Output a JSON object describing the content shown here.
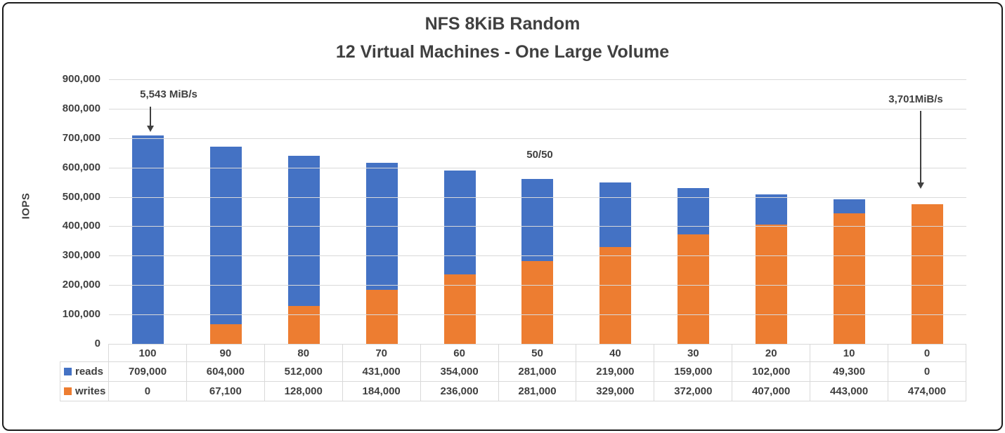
{
  "title": {
    "line1": "NFS 8KiB Random",
    "line2": "12 Virtual Machines - One Large Volume"
  },
  "chart_data": {
    "type": "bar",
    "stacked": true,
    "title": "NFS 8KiB Random 12 Virtual Machines - One Large Volume",
    "xlabel": "",
    "ylabel": "IOPS",
    "ylim": [
      0,
      900000
    ],
    "ytick_step": 100000,
    "grid": true,
    "legend_position": "table-left",
    "categories": [
      "100",
      "90",
      "80",
      "70",
      "60",
      "50",
      "40",
      "30",
      "20",
      "10",
      "0"
    ],
    "series": [
      {
        "name": "reads",
        "color": "#4472C4",
        "values": [
          709000,
          604000,
          512000,
          431000,
          354000,
          281000,
          219000,
          159000,
          102000,
          49300,
          0
        ]
      },
      {
        "name": "writes",
        "color": "#ED7D31",
        "values": [
          0,
          67100,
          128000,
          184000,
          236000,
          281000,
          329000,
          372000,
          407000,
          443000,
          474000
        ]
      }
    ],
    "yticks": [
      "900,000",
      "800,000",
      "700,000",
      "600,000",
      "500,000",
      "400,000",
      "300,000",
      "200,000",
      "100,000",
      "0"
    ],
    "annotations": [
      {
        "text": "5,543 MiB/s",
        "target": "bar-100"
      },
      {
        "text": "50/50",
        "target": "bar-50"
      },
      {
        "text": "3,701MiB/s",
        "target": "bar-0"
      }
    ]
  },
  "table": {
    "reads_label": "reads",
    "writes_label": "writes",
    "reads_values": [
      "709,000",
      "604,000",
      "512,000",
      "431,000",
      "354,000",
      "281,000",
      "219,000",
      "159,000",
      "102,000",
      "49,300",
      "0"
    ],
    "writes_values": [
      "0",
      "67,100",
      "128,000",
      "184,000",
      "236,000",
      "281,000",
      "329,000",
      "372,000",
      "407,000",
      "443,000",
      "474,000"
    ]
  },
  "colors": {
    "reads": "#4472C4",
    "writes": "#ED7D31",
    "text": "#404040",
    "gridline": "#d9d9d9"
  }
}
